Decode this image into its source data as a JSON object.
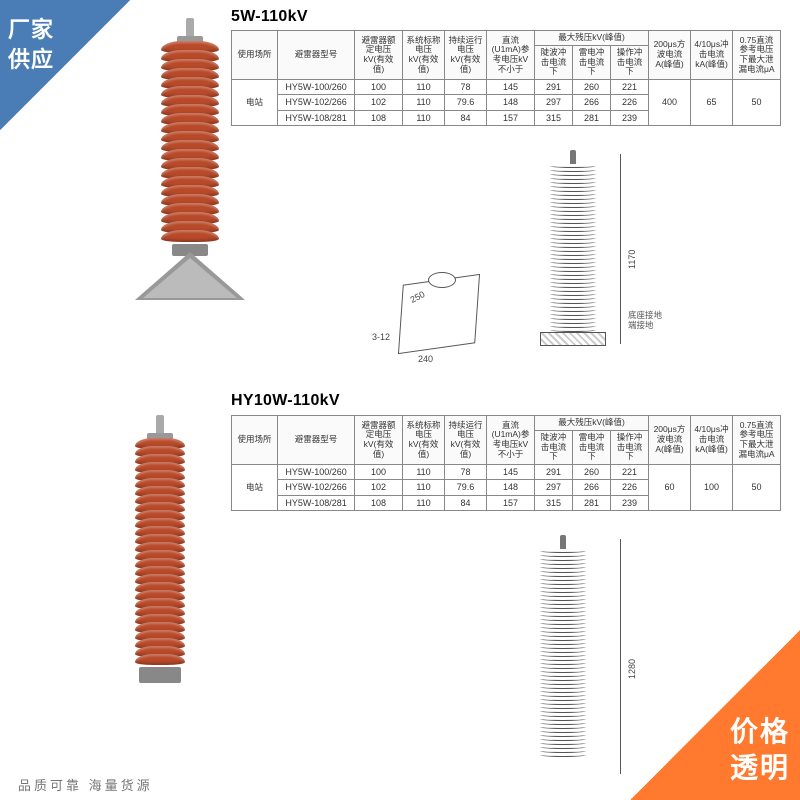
{
  "badges": {
    "top_left_l1": "厂家",
    "top_left_l2": "供应",
    "bottom_right_l1": "价格",
    "bottom_right_l2": "透明"
  },
  "footer": "品质可靠  海量货源",
  "colors": {
    "arrester_red": "#b84a2a",
    "badge_blue": "#4a7db5",
    "badge_orange": "#ff7a2e",
    "table_border": "#888888",
    "background": "#ffffff"
  },
  "section1": {
    "title": "5W-110kV",
    "diagram": {
      "height_label": "1170",
      "base_width": "240",
      "base_plate": "250",
      "hole": "3-12"
    },
    "note": "底座接地端接地",
    "arrester": {
      "skirt_count": 22
    },
    "headers": {
      "use_place": "使用场所",
      "model": "避雷器型号",
      "rated_kv": "避雷器额定电压kV(有效值)",
      "sys_kv": "系统标称电压kV(有效值)",
      "cont_kv": "持续运行电压kV(有效值)",
      "dc_ref": "直流(U1mA)参考电压kV不小于",
      "max_res": "最大残压kV(峰值)",
      "steep": "陡波冲击电流下",
      "lightning": "雷电冲击电流下",
      "switch": "操作冲击电流下",
      "sq200": "200μs方波电流A(峰值)",
      "imp410": "4/10μs冲击电流kA(峰值)",
      "leak": "0.75直流参考电压下最大泄漏电流μA"
    },
    "rows": [
      {
        "model": "HY5W-100/260",
        "rated": "100",
        "sys": "110",
        "cont": "78",
        "dc": "145",
        "steep": "291",
        "light": "260",
        "sw": "221"
      },
      {
        "model": "HY5W-102/266",
        "rated": "102",
        "sys": "110",
        "cont": "79.6",
        "dc": "148",
        "steep": "297",
        "light": "266",
        "sw": "226"
      },
      {
        "model": "HY5W-108/281",
        "rated": "108",
        "sys": "110",
        "cont": "84",
        "dc": "157",
        "steep": "315",
        "light": "281",
        "sw": "239"
      }
    ],
    "place": "电站",
    "sq200_v": "400",
    "imp410_v": "65",
    "leak_v": "50"
  },
  "section2": {
    "title": "HY10W-110kV",
    "diagram": {
      "height_label": "1280"
    },
    "arrester": {
      "skirt_count": 28
    },
    "headers": {
      "use_place": "使用场所",
      "model": "避雷器型号",
      "rated_kv": "避雷器额定电压kV(有效值)",
      "sys_kv": "系统标称电压kV(有效值)",
      "cont_kv": "持续运行电压kV(有效值)",
      "dc_ref": "直流(U1mA)参考电压kV不小于",
      "max_res": "最大残压kV(峰值)",
      "steep": "陡波冲击电流下",
      "lightning": "雷电冲击电流下",
      "switch": "操作冲击电流下",
      "sq200": "200μs方波电流A(峰值)",
      "imp410": "4/10μs冲击电流kA(峰值)",
      "leak": "0.75直流参考电压下最大泄漏电流μA"
    },
    "rows": [
      {
        "model": "HY5W-100/260",
        "rated": "100",
        "sys": "110",
        "cont": "78",
        "dc": "145",
        "steep": "291",
        "light": "260",
        "sw": "221"
      },
      {
        "model": "HY5W-102/266",
        "rated": "102",
        "sys": "110",
        "cont": "79.6",
        "dc": "148",
        "steep": "297",
        "light": "266",
        "sw": "226"
      },
      {
        "model": "HY5W-108/281",
        "rated": "108",
        "sys": "110",
        "cont": "84",
        "dc": "157",
        "steep": "315",
        "light": "281",
        "sw": "239"
      }
    ],
    "place": "电站",
    "sq200_v": "60",
    "imp410_v": "100",
    "leak_v": "50"
  }
}
